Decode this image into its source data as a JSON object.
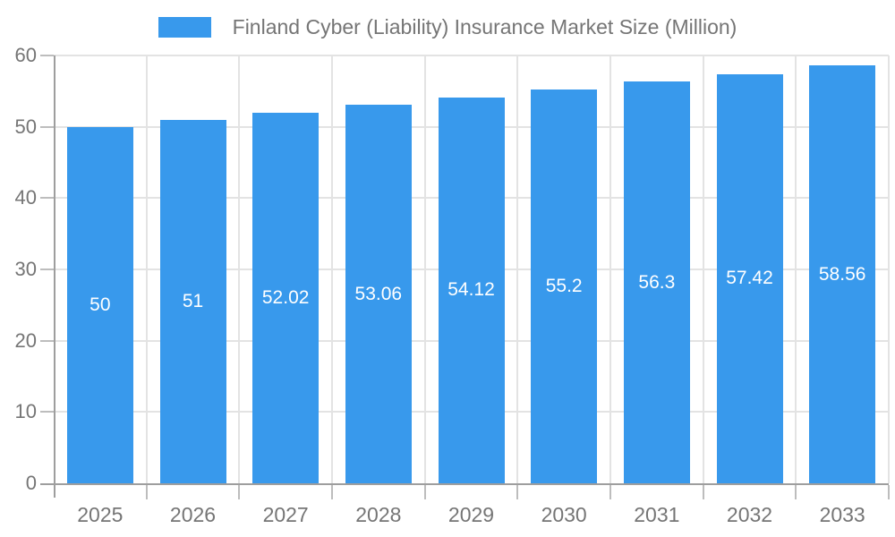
{
  "legend": {
    "series_label": "Finland Cyber (Liability) Insurance Market Size (Million)"
  },
  "colors": {
    "bar": "#3899ec",
    "axis": "#9e9e9e",
    "tick": "#bdbdbd",
    "grid": "#e3e3e3",
    "tick_label": "#757575",
    "title": "#757575",
    "value_label": "#ffffff",
    "background": "#ffffff"
  },
  "chart_data": {
    "type": "bar",
    "title": "Finland Cyber (Liability) Insurance Market Size (Million)",
    "categories": [
      "2025",
      "2026",
      "2027",
      "2028",
      "2029",
      "2030",
      "2031",
      "2032",
      "2033"
    ],
    "values": [
      50,
      51,
      52.02,
      53.06,
      54.12,
      55.2,
      56.3,
      57.42,
      58.56
    ],
    "value_labels": [
      "50",
      "51",
      "52.02",
      "53.06",
      "54.12",
      "55.2",
      "56.3",
      "57.42",
      "58.56"
    ],
    "xlabel": "",
    "ylabel": "",
    "ylim": [
      0,
      60
    ],
    "yticks": [
      0,
      10,
      20,
      30,
      40,
      50,
      60
    ],
    "grid": true,
    "legend_position": "top",
    "value_label_position": "inside-center"
  }
}
